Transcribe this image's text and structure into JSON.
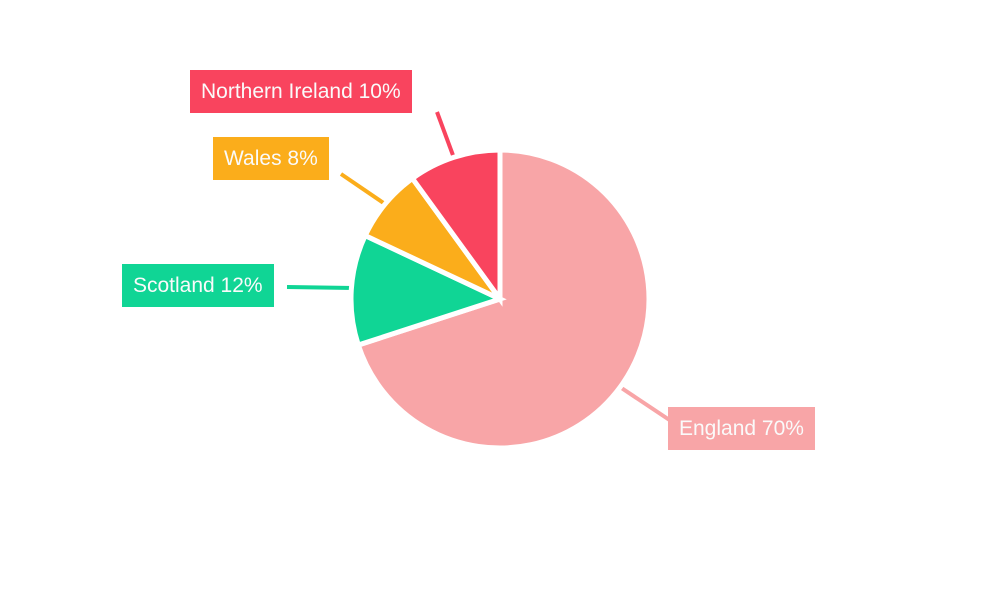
{
  "chart_data": {
    "type": "pie",
    "title": "",
    "unit": "%",
    "categories": [
      "England",
      "Scotland",
      "Wales",
      "Northern Ireland"
    ],
    "values": [
      70,
      12,
      8,
      10
    ],
    "slices": [
      {
        "label": "England",
        "value": 70,
        "display": "England 70%",
        "color": "#F8A5A7"
      },
      {
        "label": "Scotland",
        "value": 12,
        "display": "Scotland 12%",
        "color": "#10D595"
      },
      {
        "label": "Wales",
        "value": 8,
        "display": "Wales 8%",
        "color": "#FBAD1B"
      },
      {
        "label": "Northern Ireland",
        "value": 10,
        "display": "Northern Ireland 10%",
        "color": "#F9445E"
      }
    ],
    "start_angle_deg": 0,
    "direction": "clockwise",
    "slice_gap_color": "#FFFFFF",
    "label_text_color": "#FAFAFA",
    "background": "#FFFFFF",
    "legend_position": "callout-labels"
  }
}
